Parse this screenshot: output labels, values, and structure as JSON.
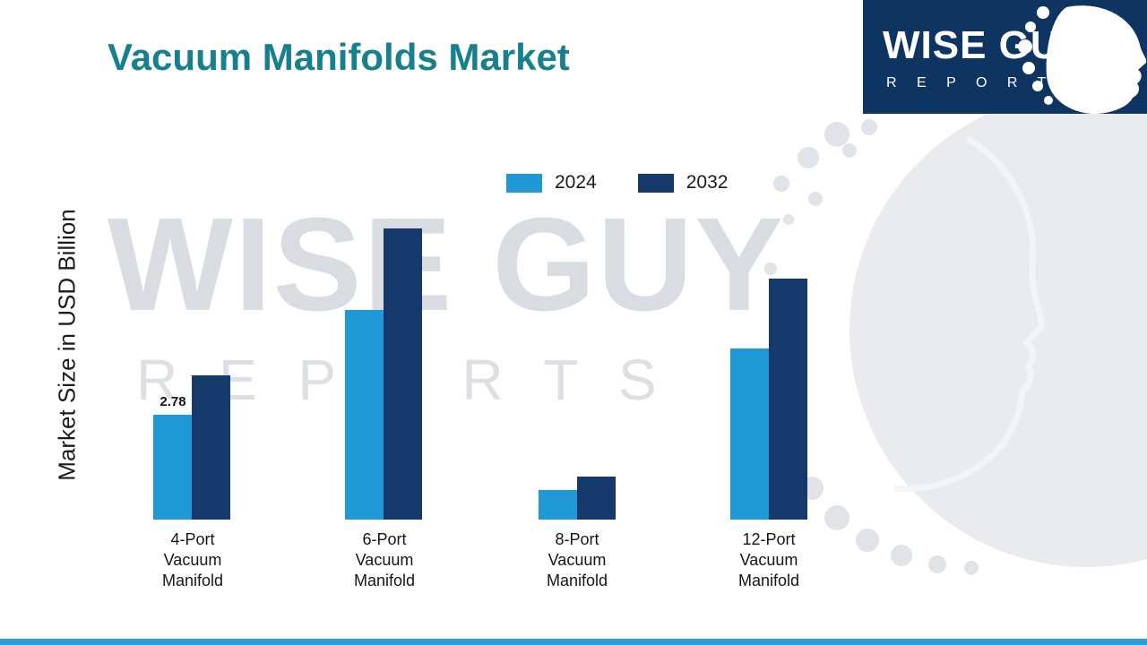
{
  "page": {
    "title": "Vacuum Manifolds Market",
    "accent_color": "#17808e",
    "bottom_bar_color": "#2b9cd8"
  },
  "logo": {
    "line1": "WISE GUY",
    "line2": "R E P O R T S",
    "bg_color": "#0e3462"
  },
  "watermark": {
    "line1": "WISE GUY",
    "line2": "R E P O R T S"
  },
  "chart_data": {
    "type": "bar",
    "title": "Vacuum Manifolds Market",
    "xlabel": "",
    "ylabel": "Market Size in USD Billion",
    "unit": "USD Billion",
    "grid": false,
    "legend_position": "top",
    "ylim": [
      0,
      8
    ],
    "categories": [
      "4-Port Vacuum Manifold",
      "6-Port Vacuum Manifold",
      "8-Port Vacuum Manifold",
      "12-Port Vacuum Manifold"
    ],
    "category_lines": [
      [
        "4-Port",
        "Vacuum",
        "Manifold"
      ],
      [
        "6-Port",
        "Vacuum",
        "Manifold"
      ],
      [
        "8-Port",
        "Vacuum",
        "Manifold"
      ],
      [
        "12-Port",
        "Vacuum",
        "Manifold"
      ]
    ],
    "series": [
      {
        "name": "2024",
        "color": "#2098d6",
        "values": [
          2.78,
          5.57,
          0.79,
          4.55
        ]
      },
      {
        "name": "2032",
        "color": "#15396b",
        "values": [
          3.83,
          7.74,
          1.15,
          6.4
        ]
      }
    ],
    "value_labels": [
      {
        "category_index": 0,
        "series_index": 0,
        "text": "2.78"
      }
    ]
  }
}
